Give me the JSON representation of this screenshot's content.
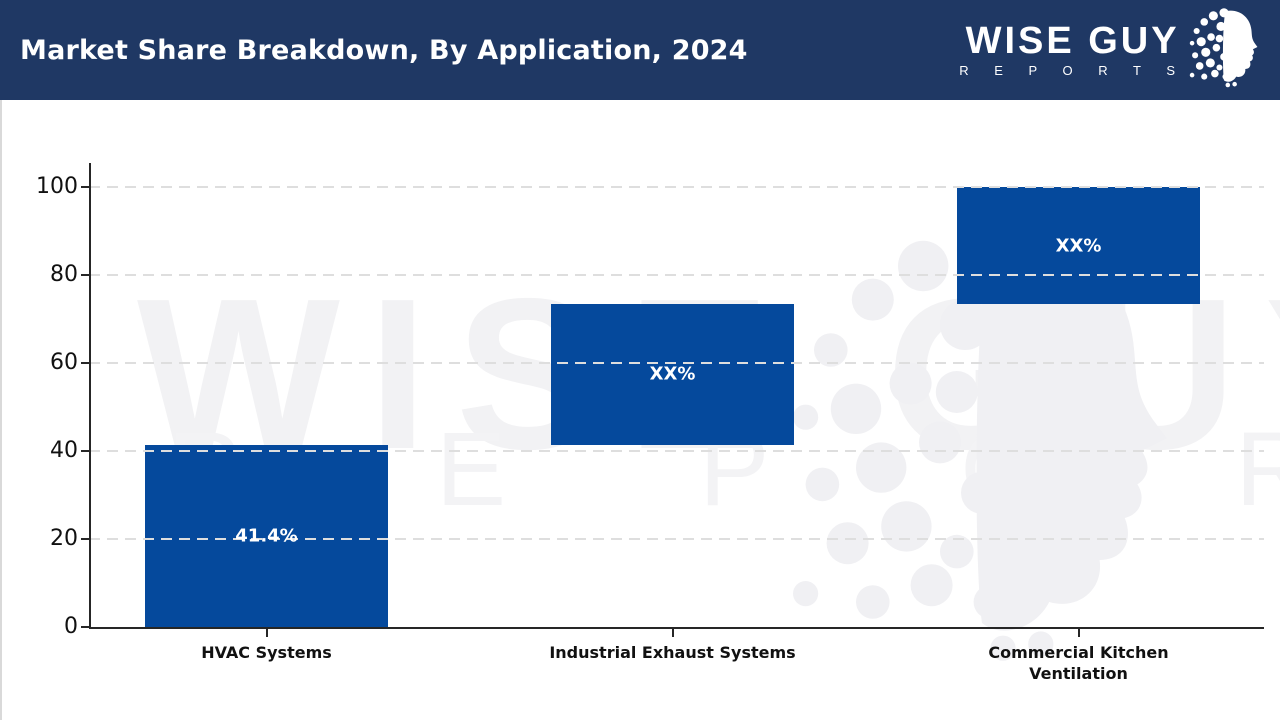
{
  "header": {
    "title": "Market Share Breakdown, By Application, 2024",
    "bg_color": "#1f3864",
    "logo": {
      "line1": "WISE GUY",
      "line2": "R E P O R T S"
    }
  },
  "watermark": {
    "line1": "WISE GUY",
    "line2": "R E P O R T S"
  },
  "chart_data": {
    "type": "bar",
    "subtype": "waterfall-segmented",
    "title": "Market Share Breakdown, By Application, 2024",
    "categories": [
      "HVAC Systems",
      "Industrial Exhaust Systems",
      "Commercial Kitchen Ventilation"
    ],
    "bars": [
      {
        "category": "HVAC Systems",
        "start": 0,
        "end": 41.4,
        "label": "41.4%"
      },
      {
        "category": "Industrial Exhaust Systems",
        "start": 41.4,
        "end": 73.4,
        "label": "XX%"
      },
      {
        "category": "Commercial Kitchen Ventilation",
        "start": 73.4,
        "end": 100,
        "label": "XX%"
      }
    ],
    "yticks": [
      0,
      20,
      40,
      60,
      80,
      100
    ],
    "ylim": [
      0,
      105
    ],
    "xlabel": "",
    "ylabel": "",
    "legend": "none",
    "grid": "horizontal-dashed",
    "colors": {
      "bar": "#05499c",
      "bar_label": "#ffffff",
      "gridline": "#dedede",
      "axis": "#262626",
      "tick_label": "#111111",
      "header_bg": "#1f3864",
      "title_text": "#ffffff"
    }
  }
}
